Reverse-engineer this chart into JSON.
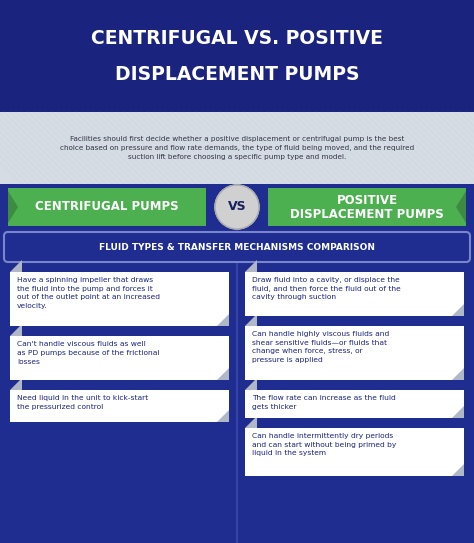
{
  "title_line1": "CENTRIFUGAL VS. POSITIVE",
  "title_line2": "DISPLACEMENT PUMPS",
  "subtitle": "Facilities should first decide whether a positive displacement or centrifugal pump is the best\nchoice based on pressure and flow rate demands, the type of fluid being moved, and the required\nsuction lift before choosing a specific pump type and model.",
  "vs_label": "VS",
  "left_header": "CENTRIFUGAL PUMPS",
  "right_header_line1": "POSITIVE",
  "right_header_line2": "DISPLACEMENT PUMPS",
  "comparison_label": "FLUID TYPES & TRANSFER MECHANISMS COMPARISON",
  "left_items": [
    "Have a spinning impeller that draws\nthe fluid into the pump and forces it\nout of the outlet point at an increased\nvelocity.",
    "Can't handle viscous fluids as well\nas PD pumps because of the frictional\nlosses",
    "Need liquid in the unit to kick-start\nthe pressurized control"
  ],
  "right_items": [
    "Draw fluid into a cavity, or displace the\nfluid, and then force the fluid out of the\ncavity through suction",
    "Can handle highly viscous fluids and\nshear sensitive fluids—or fluids that\nchange when force, stress, or\npressure is applied",
    "The flow rate can increase as the fluid\ngets thicker",
    "Can handle intermittently dry periods\nand can start without being primed by\nliquid in the system"
  ],
  "bg_dark_blue": "#1e2d8f",
  "title_bg": "#1a237e",
  "subtitle_bg": "#d6dce4",
  "green_color": "#4caf50",
  "dark_green": "#3d8b40",
  "white": "#ffffff",
  "dark_navy": "#162060",
  "vs_circle_bg": "#d0d0d0",
  "card_text_color": "#1a237e",
  "arrow_color": "#b0b8c8",
  "comparison_border": "#7986cb",
  "divider_color": "#3949ab"
}
